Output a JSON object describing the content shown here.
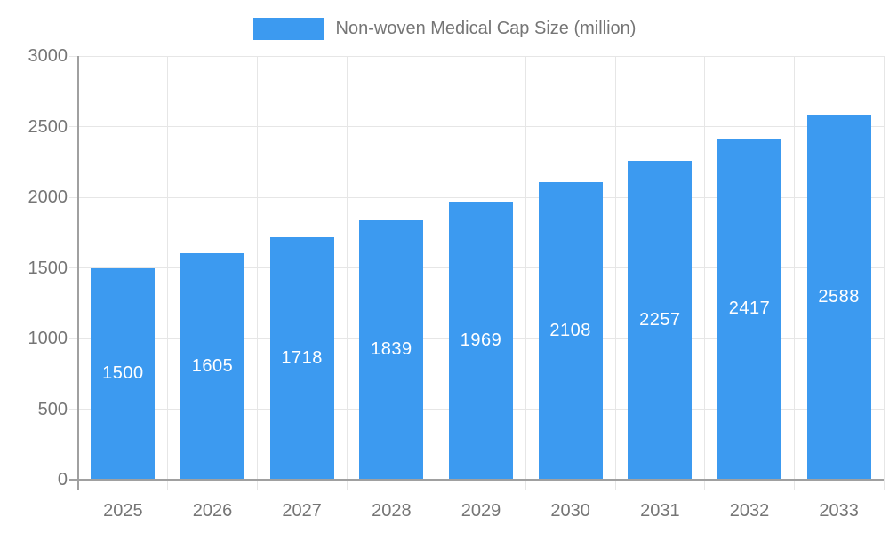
{
  "chart_data": {
    "type": "bar",
    "title": "",
    "xlabel": "",
    "ylabel": "",
    "legend": {
      "position": "top",
      "label": "Non-woven Medical Cap Size (million)"
    },
    "categories": [
      "2025",
      "2026",
      "2027",
      "2028",
      "2029",
      "2030",
      "2031",
      "2032",
      "2033"
    ],
    "values": [
      1500,
      1605,
      1718,
      1839,
      1969,
      2108,
      2257,
      2417,
      2588
    ],
    "value_labels": [
      "1500",
      "1605",
      "1718",
      "1839",
      "1969",
      "2108",
      "2257",
      "2417",
      "2588"
    ],
    "ylim": [
      0,
      3000
    ],
    "y_ticks": [
      0,
      500,
      1000,
      1500,
      2000,
      2500,
      3000
    ],
    "y_tick_labels": [
      "0",
      "500",
      "1000",
      "1500",
      "2000",
      "2500",
      "3000"
    ],
    "grid": true,
    "value_labels_inside_bars": true,
    "colors": {
      "bar": "#3C9AF0",
      "grid": "#e6e6e6",
      "axis": "#a0a0a0",
      "tick_text": "#757575",
      "legend_text": "#757575",
      "value_label_text": "#ffffff",
      "background": "#ffffff"
    }
  }
}
